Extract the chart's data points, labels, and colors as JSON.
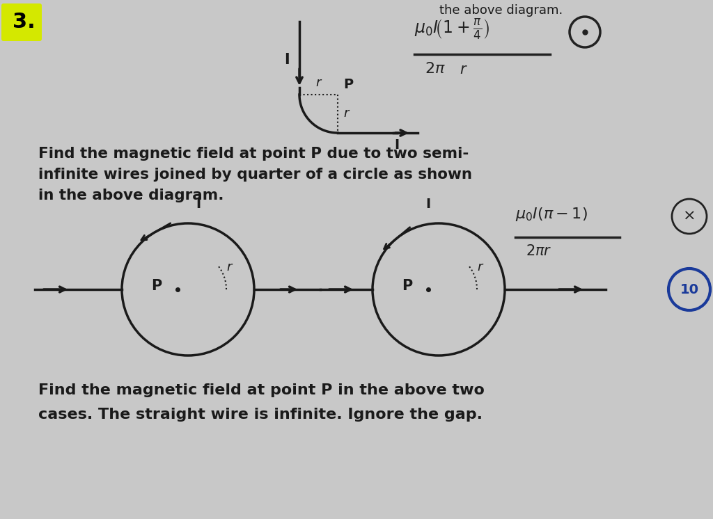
{
  "bg_color": "#c8c8c8",
  "page_bg": "#d2d2d2",
  "title": "3.",
  "top_clip_text": "the above diagram.",
  "problem_text": [
    "Find the magnetic field at point P due to two semi-",
    "infinite wires joined by quarter of a circle as shown",
    "in the above diagram."
  ],
  "bottom_text": [
    "Find the magnetic field at point P in the above two",
    "cases. The straight wire is infinite. Ignore the gap."
  ],
  "wire_color": "#1a1a1a",
  "text_color": "#1a1a1a",
  "handwritten_color": "#222222",
  "circle_color": "#1a1a1a",
  "highlight_yellow": "#d4e800",
  "number_10_color": "#1a3a9a"
}
